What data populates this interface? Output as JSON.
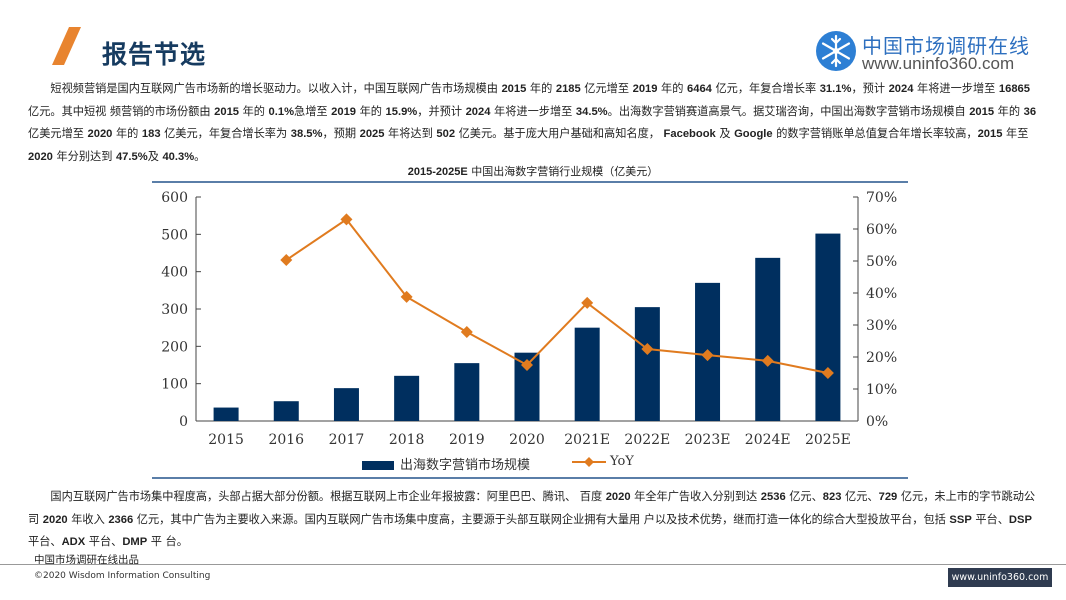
{
  "header": {
    "title": "报告节选",
    "accent_color": "#e8842f",
    "title_color": "#163b60"
  },
  "logo": {
    "cn": "中国市场调研在线",
    "en": "www.uninfo360.com",
    "icon": "snowflake-logo-icon",
    "color": "#2d6fbf"
  },
  "paragraph1": [
    {
      "t": "短视频营销是国内互联网广告市场新的增长驱动力。以收入计，中国互联网广告市场规模由 "
    },
    {
      "b": "2015"
    },
    {
      "t": " 年的 "
    },
    {
      "b": "2185"
    },
    {
      "t": " 亿元增至 "
    },
    {
      "b": "2019"
    },
    {
      "t": " 年的 "
    },
    {
      "b": "6464"
    },
    {
      "t": " 亿元，年复合增长率 "
    },
    {
      "b": "31.1%"
    },
    {
      "t": "，预计 "
    },
    {
      "b": "2024"
    },
    {
      "t": " 年将进一步增至 "
    },
    {
      "b": "16865"
    },
    {
      "t": " 亿元。其中短视 频营销的市场份额由 "
    },
    {
      "b": "2015"
    },
    {
      "t": " 年的 "
    },
    {
      "b": "0.1%"
    },
    {
      "t": "急增至 "
    },
    {
      "b": "2019"
    },
    {
      "t": " 年的 "
    },
    {
      "b": "15.9%"
    },
    {
      "t": "，并预计 "
    },
    {
      "b": "2024"
    },
    {
      "t": " 年将进一步增至 "
    },
    {
      "b": "34.5%"
    },
    {
      "t": "。出海数字营销赛道高景气。据艾瑞咨询，中国出海数字营销市场规模自 "
    },
    {
      "b": "2015"
    },
    {
      "t": " 年的 "
    },
    {
      "b": "36"
    },
    {
      "t": " 亿美元增至 "
    },
    {
      "b": "2020"
    },
    {
      "t": " 年的 "
    },
    {
      "b": "183"
    },
    {
      "t": " 亿美元，年复合增长率为 "
    },
    {
      "b": "38.5%"
    },
    {
      "t": "，预期 "
    },
    {
      "b": "2025"
    },
    {
      "t": " 年将达到 "
    },
    {
      "b": "502"
    },
    {
      "t": " 亿美元。基于庞大用户基础和高知名度， "
    },
    {
      "b": "Facebook"
    },
    {
      "t": " 及 "
    },
    {
      "b": "Google"
    },
    {
      "t": " 的数字营销账单总值复合年增长率较高，"
    },
    {
      "b": "2015"
    },
    {
      "t": " 年至 "
    },
    {
      "b": "2020"
    },
    {
      "t": " 年分别达到 "
    },
    {
      "b": "47.5%"
    },
    {
      "t": "及 "
    },
    {
      "b": "40.3%"
    },
    {
      "t": "。"
    }
  ],
  "paragraph2": [
    {
      "t": "国内互联网广告市场集中程度高，头部占据大部分份额。根据互联网上市企业年报披露：阿里巴巴、腾讯、 百度 "
    },
    {
      "b": "2020"
    },
    {
      "t": " 年全年广告收入分别到达 "
    },
    {
      "b": "2536"
    },
    {
      "t": " 亿元、"
    },
    {
      "b": "823"
    },
    {
      "t": " 亿元、"
    },
    {
      "b": "729"
    },
    {
      "t": " 亿元，未上市的字节跳动公司 "
    },
    {
      "b": "2020"
    },
    {
      "t": " 年收入 "
    },
    {
      "b": "2366"
    },
    {
      "t": " 亿元，其中广告为主要收入来源。国内互联网广告市场集中度高，主要源于头部互联网企业拥有大量用 户以及技术优势，继而打造一体化的综合大型投放平台，包括 "
    },
    {
      "b": "SSP"
    },
    {
      "t": " 平台、"
    },
    {
      "b": "DSP"
    },
    {
      "t": " 平台、"
    },
    {
      "b": "ADX"
    },
    {
      "t": " 平台、"
    },
    {
      "b": "DMP"
    },
    {
      "t": " 平 台。"
    }
  ],
  "chart_data": {
    "type": "bar",
    "title_bold": "2015-2025E",
    "title": "中国出海数字营销行业规模（亿美元）",
    "categories": [
      "2015",
      "2016",
      "2017",
      "2018",
      "2019",
      "2020",
      "2021E",
      "2022E",
      "2023E",
      "2024E",
      "2025E"
    ],
    "series": [
      {
        "name": "出海数字营销市场规模",
        "type": "bar",
        "axis": "left",
        "color": "#002f5f",
        "values": [
          36,
          53,
          88,
          121,
          155,
          183,
          250,
          305,
          370,
          437,
          502
        ]
      },
      {
        "name": "YoY",
        "type": "line",
        "axis": "right",
        "color": "#e07b1f",
        "marker": "diamond",
        "values": [
          null,
          50.3,
          63.0,
          38.8,
          27.8,
          17.5,
          36.9,
          22.5,
          20.6,
          18.8,
          15.0
        ]
      }
    ],
    "ylim_left": [
      0,
      600
    ],
    "yticks_left": [
      "0",
      "100",
      "200",
      "300",
      "400",
      "500",
      "600"
    ],
    "ylim_right": [
      0,
      70
    ],
    "yticks_right": [
      "0%",
      "10%",
      "20%",
      "30%",
      "40%",
      "50%",
      "60%",
      "70%"
    ],
    "xlabel": "",
    "ylabel": "",
    "grid": false,
    "legend": "bottom"
  },
  "footer": {
    "producer": "中国市场调研在线出品",
    "copyright": "©2020 Wisdom Information Consulting",
    "url": "www.uninfo360.com"
  }
}
